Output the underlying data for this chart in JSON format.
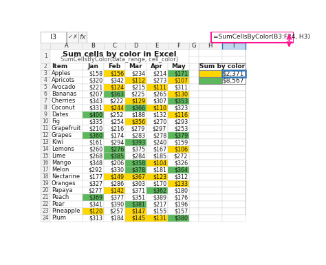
{
  "title": "Sum cells by color in Excel",
  "subtitle": "SumCellsByColor(data_range, cell_color)",
  "formula_bar_cell": "I3",
  "formula_bar_formula": "=SumCellsByColor(B3:F24, H3)",
  "col_headers": [
    "A",
    "B",
    "C",
    "D",
    "E",
    "F",
    "G",
    "H",
    "I"
  ],
  "data_headers": [
    "Item",
    "Jan",
    "Feb",
    "Mar",
    "Apr",
    "May"
  ],
  "items": [
    "Apples",
    "Apricots",
    "Avocado",
    "Bananas",
    "Cherries",
    "Coconut",
    "Dates",
    "Fig",
    "Grapefruit",
    "Grapes",
    "Kiwi",
    "Lemons",
    "Lime",
    "Mango",
    "Melon",
    "Nectarine",
    "Oranges",
    "Papaya",
    "Peach",
    "Pear",
    "Pineapple",
    "Plum"
  ],
  "jan": [
    "$158",
    "$320",
    "$221",
    "$207",
    "$343",
    "$331",
    "$400",
    "$335",
    "$210",
    "$360",
    "$161",
    "$260",
    "$268",
    "$348",
    "$292",
    "$177",
    "$327",
    "$277",
    "$369",
    "$341",
    "$120",
    "$313"
  ],
  "feb": [
    "$156",
    "$342",
    "$124",
    "$363",
    "$222",
    "$244",
    "$252",
    "$254",
    "$216",
    "$174",
    "$294",
    "$276",
    "$385",
    "$206",
    "$330",
    "$149",
    "$286",
    "$142",
    "$377",
    "$390",
    "$257",
    "$184"
  ],
  "mar": [
    "$234",
    "$112",
    "$215",
    "$225",
    "$129",
    "$366",
    "$188",
    "$356",
    "$279",
    "$283",
    "$393",
    "$375",
    "$284",
    "$358",
    "$378",
    "$367",
    "$303",
    "$371",
    "$351",
    "$381",
    "$147",
    "$145"
  ],
  "apr": [
    "$214",
    "$273",
    "$111",
    "$265",
    "$307",
    "$110",
    "$132",
    "$270",
    "$297",
    "$278",
    "$240",
    "$167",
    "$185",
    "$104",
    "$181",
    "$123",
    "$170",
    "$362",
    "$389",
    "$217",
    "$155",
    "$131"
  ],
  "may": [
    "$171",
    "$107",
    "$311",
    "$130",
    "$353",
    "$323",
    "$116",
    "$293",
    "$253",
    "$379",
    "$159",
    "$106",
    "$272",
    "$326",
    "$364",
    "$312",
    "$133",
    "$180",
    "$176",
    "$196",
    "$157",
    "$380"
  ],
  "yellow": "#FFD700",
  "green": "#5CB85C",
  "sum_label": "Sum by color",
  "sum_yellow": "$2,371",
  "sum_green": "$8,567",
  "cell_colors": {
    "3_C": "yellow",
    "3_F": "green",
    "4_D": "yellow",
    "4_F": "yellow",
    "5_C": "yellow",
    "5_E": "yellow",
    "6_C": "green",
    "6_F": "yellow",
    "7_D": "yellow",
    "7_F": "green",
    "8_C": "yellow",
    "8_D": "green",
    "8_E": "yellow",
    "9_B": "green",
    "9_F": "yellow",
    "10_D": "yellow",
    "12_B": "green",
    "12_F": "green",
    "13_D": "green",
    "14_C": "green",
    "14_F": "yellow",
    "15_C": "green",
    "16_D": "green",
    "16_E": "yellow",
    "17_D": "green",
    "17_F": "green",
    "18_C": "yellow",
    "18_D": "yellow",
    "18_E": "yellow",
    "19_F": "yellow",
    "20_C": "yellow",
    "20_E": "green",
    "21_B": "green",
    "22_D": "green",
    "23_B": "yellow",
    "23_D": "yellow",
    "24_D": "yellow",
    "24_E": "yellow",
    "24_F": "green"
  },
  "formula_box_color": "#FF1493",
  "arrow_color": "#FF1493",
  "selected_col_color": "#BDD7EE",
  "selected_col_border": "#2E75B6",
  "grid_color": "#D0D0D0",
  "header_bg": "#F2F2F2",
  "fb_bg": "#F5F5F5"
}
